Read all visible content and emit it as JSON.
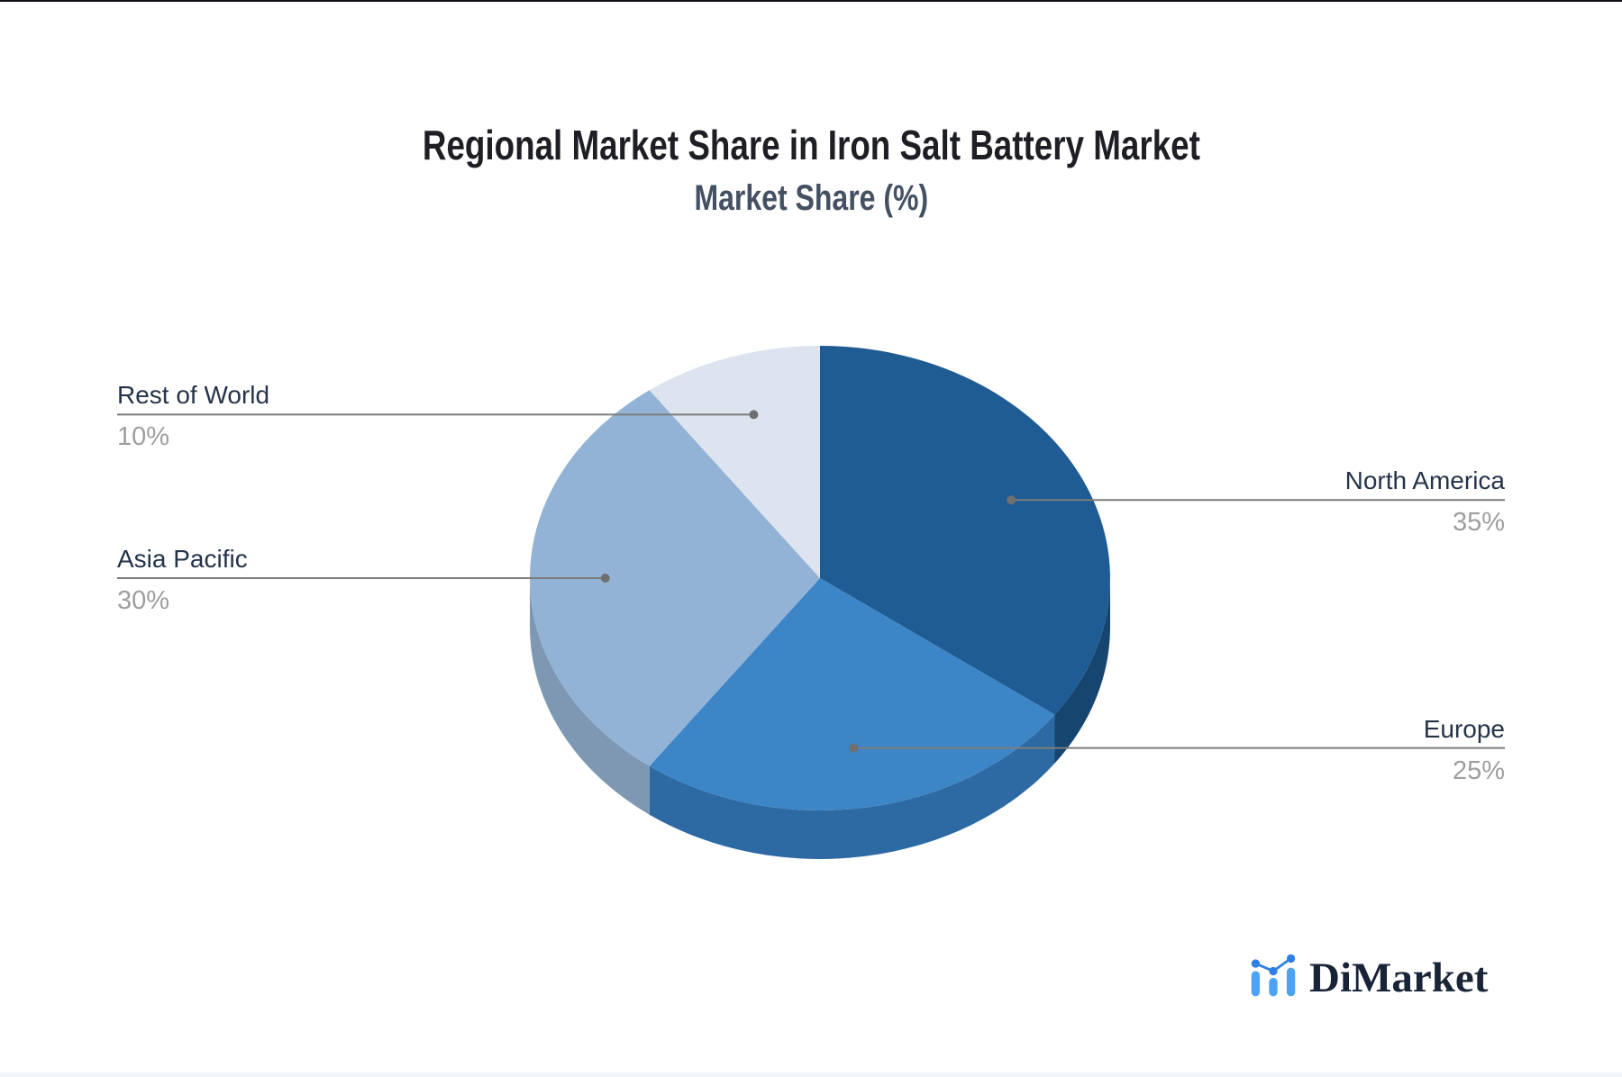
{
  "page": {
    "background": "#ffffff",
    "top_border_color": "#101419"
  },
  "chart_data": {
    "type": "pie",
    "style": "3d",
    "title": "Regional Market Share in Iron Salt Battery Market",
    "subtitle": "Market Share (%)",
    "unit": "%",
    "legend_position": "none",
    "start_angle_deg": 0,
    "clockwise": true,
    "categories": [
      "North America",
      "Europe",
      "Asia Pacific",
      "Rest of World"
    ],
    "values": [
      35,
      25,
      30,
      10
    ],
    "slices": [
      {
        "label": "North America",
        "value": 35,
        "pct_label": "35%",
        "side": "right",
        "color": "#1f5c94",
        "side_color": "#164570"
      },
      {
        "label": "Europe",
        "value": 25,
        "pct_label": "25%",
        "side": "right",
        "color": "#3c85c7",
        "side_color": "#2d6aa3"
      },
      {
        "label": "Asia Pacific",
        "value": 30,
        "pct_label": "30%",
        "side": "left",
        "color": "#92b3d6",
        "side_color": "#7e98b4"
      },
      {
        "label": "Rest of World",
        "value": 10,
        "pct_label": "10%",
        "side": "left",
        "color": "#dde4ef",
        "side_color": "#c3cddd"
      }
    ],
    "label_line_color": "#7d7d7d",
    "anchor_dot_color": "#6f6f6f",
    "label_text_color": "#253349",
    "percent_text_color": "#9e9e9e"
  },
  "branding": {
    "logo_text": "DiMarket",
    "logo_text_color": "#1a2438",
    "logo_bar_color": "#4da3f3",
    "logo_dot_color": "#2f80e4"
  }
}
